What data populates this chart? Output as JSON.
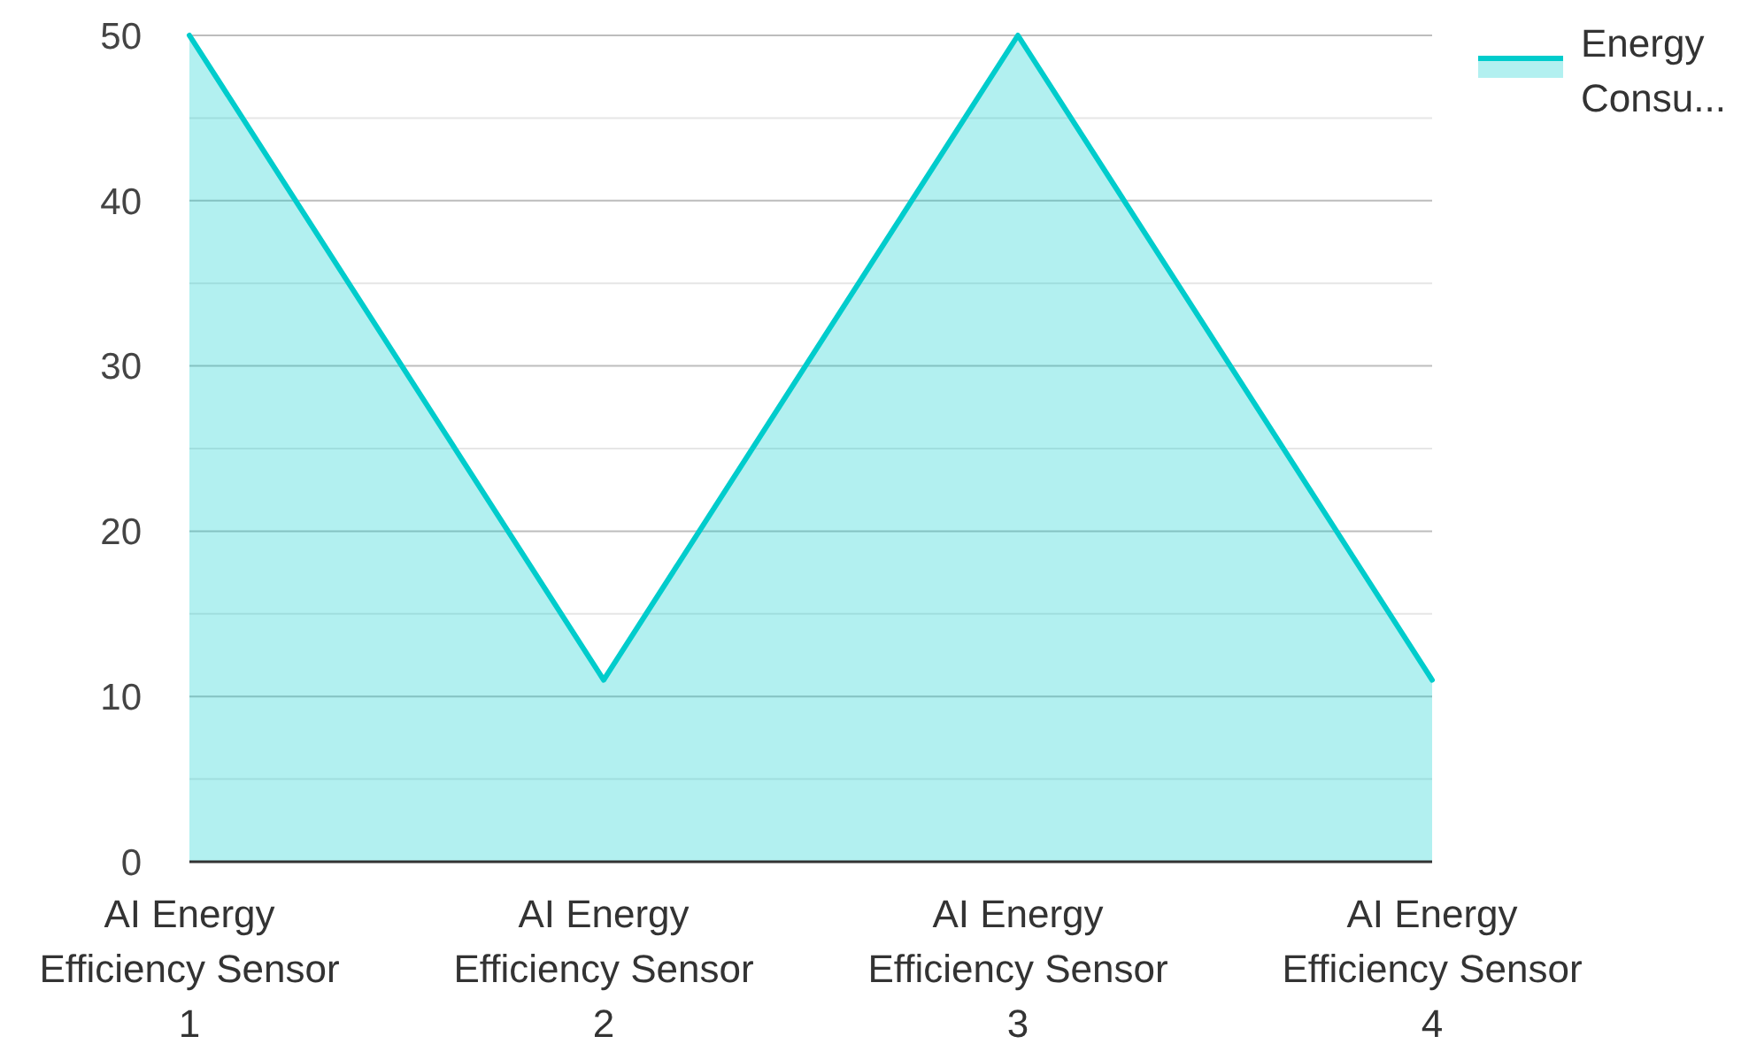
{
  "chart_data": {
    "type": "area",
    "categories": [
      "AI Energy Efficiency Sensor 1",
      "AI Energy Efficiency Sensor 2",
      "AI Energy Efficiency Sensor 3",
      "AI Energy Efficiency Sensor 4"
    ],
    "series": [
      {
        "name": "Energy Consu...",
        "color": "#00cccc",
        "values": [
          50,
          11,
          50,
          11
        ]
      }
    ],
    "ylim": [
      0,
      50
    ],
    "yticks": [
      0,
      {
        "value": 5,
        "label": null
      },
      10,
      {
        "value": 15,
        "label": null
      },
      20,
      {
        "value": 25,
        "label": null
      },
      30,
      {
        "value": 35,
        "label": null
      },
      40,
      {
        "value": 45,
        "label": null
      },
      50
    ],
    "grid": "y",
    "legend": "top right"
  }
}
